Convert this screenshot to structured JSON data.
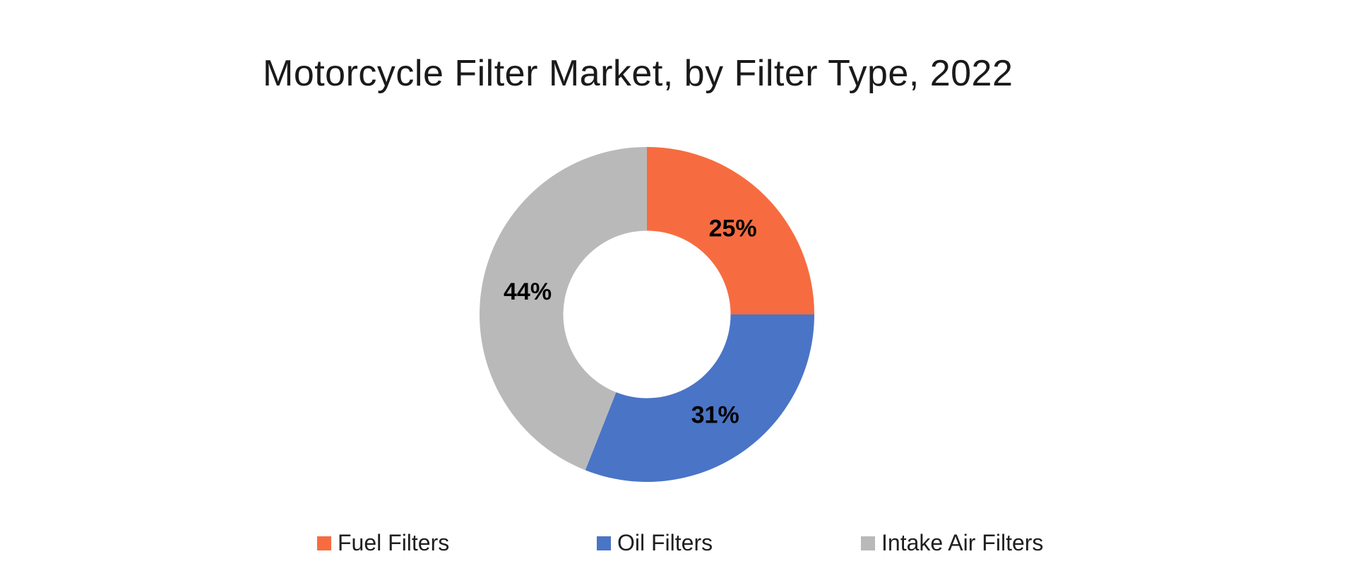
{
  "page": {
    "background_color": "#ffffff"
  },
  "header": {
    "title": "Motorcycle Filter Market, by Filter Type, 2022"
  },
  "chart_data": {
    "type": "pie",
    "subtype": "donut",
    "title": "Motorcycle Filter Market, by Filter Type, 2022",
    "categories": [
      "Fuel Filters",
      "Oil Filters",
      "Intake Air Filters"
    ],
    "values": [
      25,
      31,
      44
    ],
    "unit": "%",
    "data_labels": [
      "25%",
      "31%",
      "44%"
    ],
    "colors": [
      "#F66C40",
      "#4A74C6",
      "#B9B9B9"
    ],
    "start_angle_deg": 0,
    "direction": "clockwise",
    "donut_hole_ratio": 0.5,
    "label_color": "#000000",
    "legend_position": "bottom"
  },
  "legend": {
    "items": [
      {
        "label": "Fuel Filters",
        "color": "#F66C40"
      },
      {
        "label": "Oil Filters",
        "color": "#4A74C6"
      },
      {
        "label": "Intake Air Filters",
        "color": "#B9B9B9"
      }
    ]
  }
}
